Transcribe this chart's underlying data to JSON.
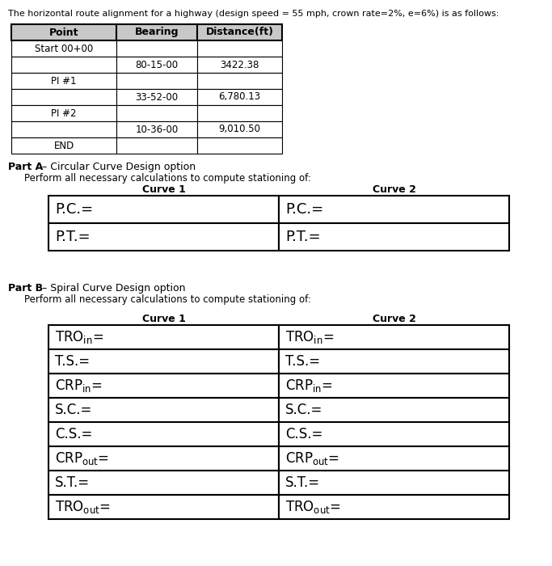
{
  "title": "The horizontal route alignment for a highway (design speed = 55 mph, crown rate=2%, e=6%) is as follows:",
  "table1_headers": [
    "Point",
    "Bearing",
    "Distance(ft)"
  ],
  "table1_rows": [
    [
      "Start 00+00",
      "",
      ""
    ],
    [
      "",
      "80-15-00",
      "3422.38"
    ],
    [
      "PI #1",
      "",
      ""
    ],
    [
      "",
      "33-52-00",
      "6,780.13"
    ],
    [
      "PI #2",
      "",
      ""
    ],
    [
      "",
      "10-36-00",
      "9,010.50"
    ],
    [
      "END",
      "",
      ""
    ]
  ],
  "part_a_bold": "Part A",
  "part_a_rest": " – Circular Curve Design option",
  "part_a_subtitle": "Perform all necessary calculations to compute stationing of:",
  "part_a_rows": [
    "P.C.=",
    "P.T.="
  ],
  "part_b_bold": "Part B",
  "part_b_rest": " – Spiral Curve Design option",
  "part_b_subtitle": "Perform all necessary calculations to compute stationing of:",
  "part_b_rows": [
    "TRO_in=",
    "T.S.=",
    "CRP_in=",
    "S.C.=",
    "C.S.=",
    "CRP_out=",
    "S.T.=",
    "TRO_out="
  ],
  "bg_color": "#ffffff",
  "text_color": "#000000",
  "header_bg": "#c8c8c8",
  "lw_thick": 1.5,
  "lw_thin": 0.8,
  "title_fontsize": 8.0,
  "body_fontsize": 8.5,
  "cell_label_fontsize": 13.0,
  "header_fontsize": 9.0
}
